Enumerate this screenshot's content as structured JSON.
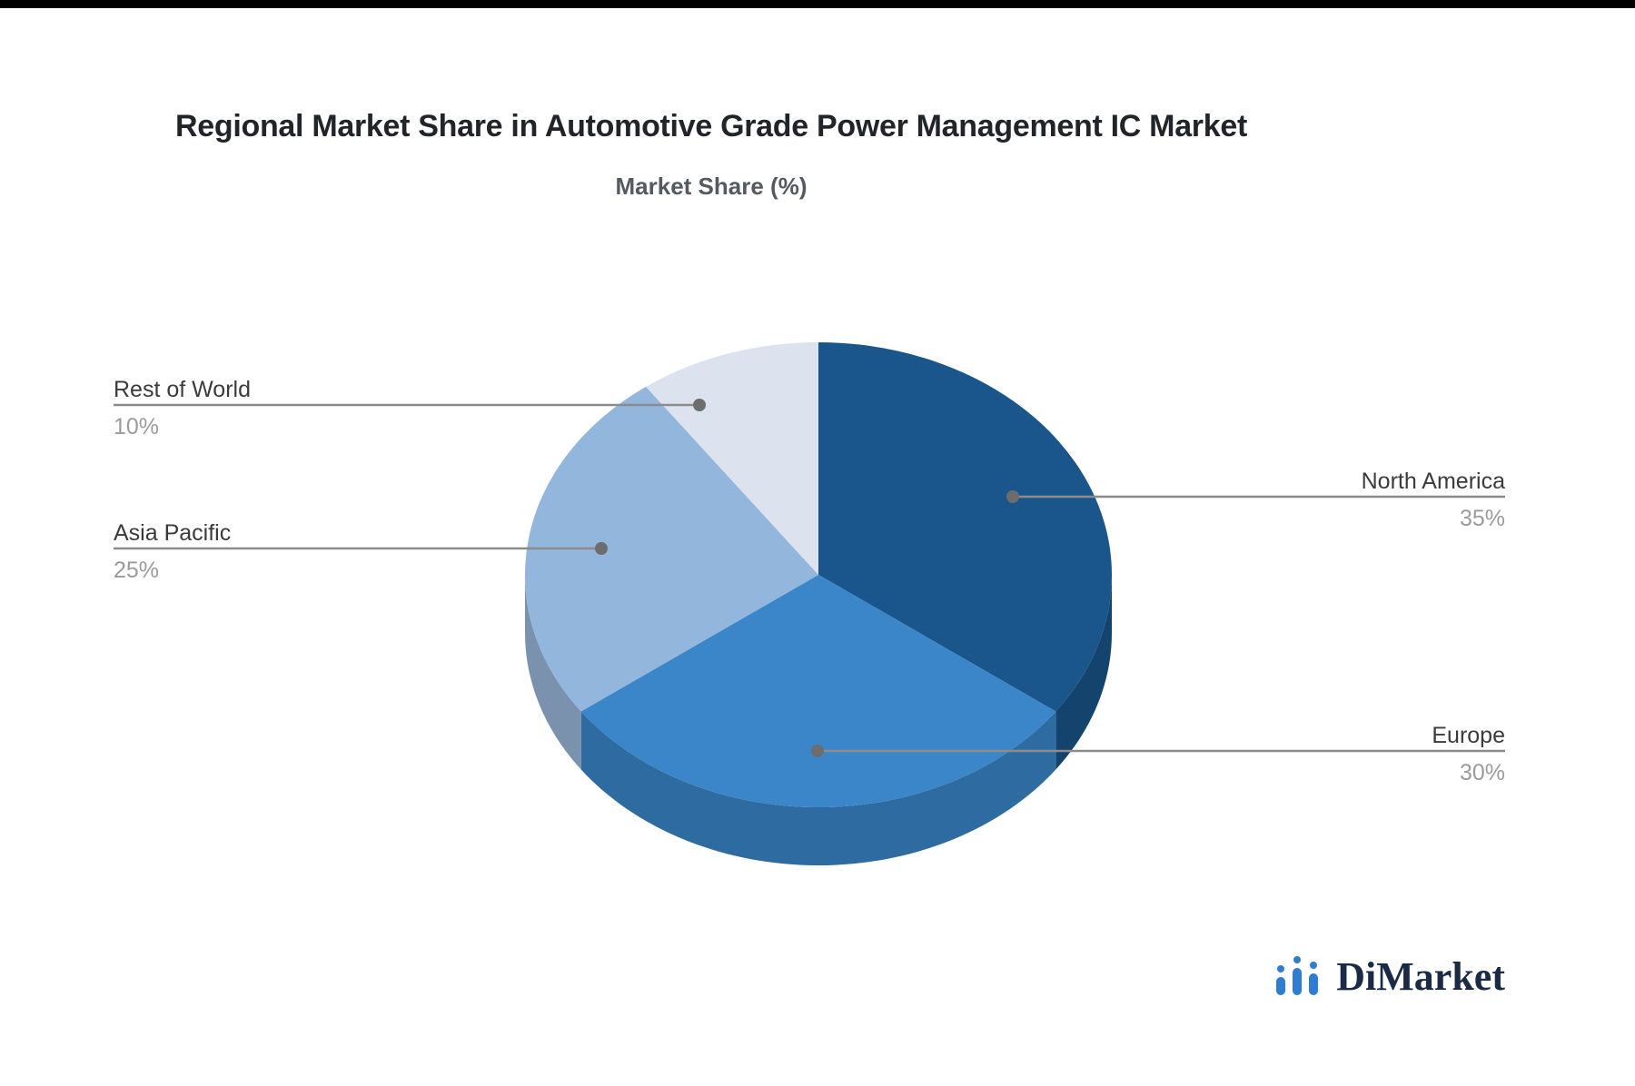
{
  "page": {
    "title": "Regional Market Share in Automotive Grade Power Management IC Market",
    "subtitle": "Market Share (%)"
  },
  "chart_data": {
    "type": "pie",
    "title": "Regional Market Share in Automotive Grade Power Management IC Market",
    "subtitle": "Market Share (%)",
    "unit": "%",
    "effect": "3d",
    "start_angle_deg": 0,
    "direction": "clockwise",
    "slices": [
      {
        "label": "North America",
        "value": 35,
        "pct_label": "35%",
        "color": "#1A568C",
        "depth_color": "#14436E",
        "label_side": "right"
      },
      {
        "label": "Europe",
        "value": 30,
        "pct_label": "30%",
        "color": "#3A86C9",
        "depth_color": "#2D6BA0",
        "label_side": "right"
      },
      {
        "label": "Asia Pacific",
        "value": 25,
        "pct_label": "25%",
        "color": "#93B6DC",
        "depth_color": "#7A92AD",
        "label_side": "left"
      },
      {
        "label": "Rest of World",
        "value": 10,
        "pct_label": "10%",
        "color": "#DCE3EF",
        "depth_color": "#C3CBDA",
        "label_side": "left"
      }
    ],
    "style": {
      "leader_line_color": "#8C8C8C",
      "leader_dot_color": "#6D6D6D",
      "label_color": "#3B3B3B",
      "pct_color": "#9B9B9B",
      "legend": "none",
      "grid": false
    }
  },
  "logo": {
    "text": "DiMarket",
    "icon": "bar-chart-dots-icon",
    "text_color": "#1B2B45",
    "icon_color": "#2F7CD3"
  }
}
